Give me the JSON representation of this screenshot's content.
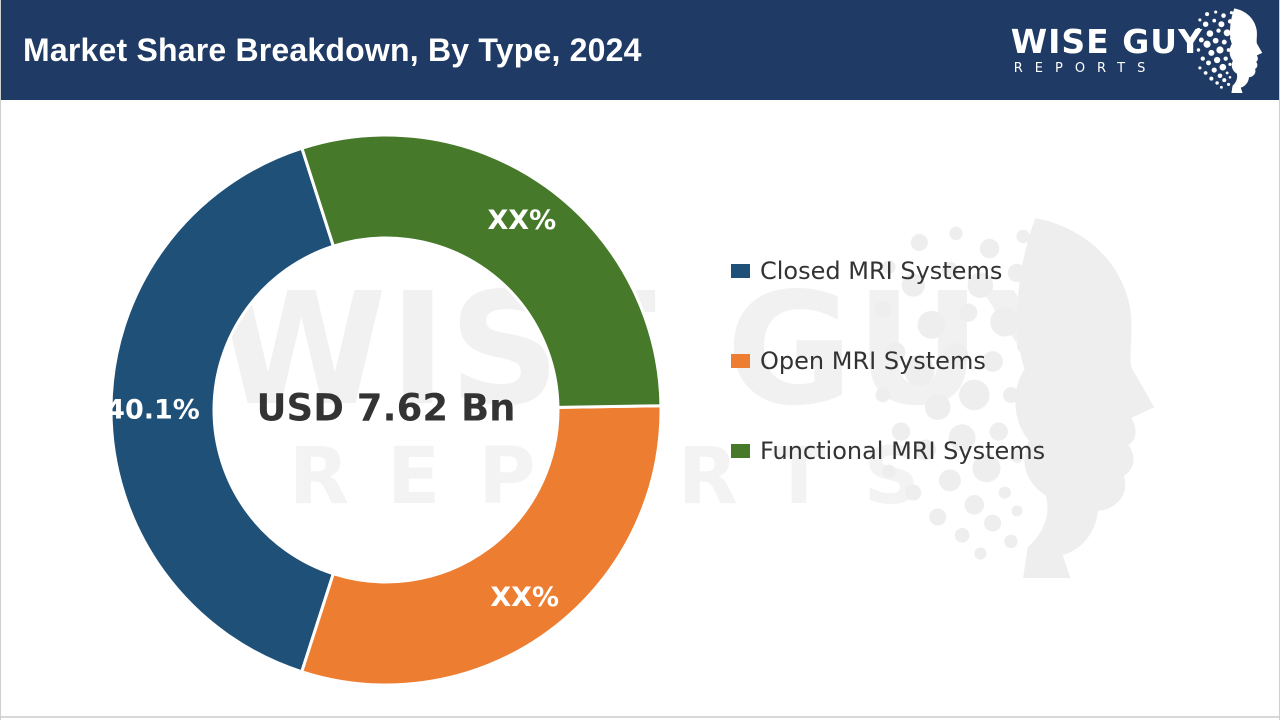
{
  "header": {
    "title": "Market Share Breakdown, By Type, 2024",
    "bg_color": "#1f3a64",
    "logo": {
      "line1": "WISE GUY",
      "line2": "REPORTS"
    }
  },
  "watermark": {
    "line1": "WISE GUY",
    "line2": "REPORTS"
  },
  "chart_data": {
    "type": "pie",
    "subtype": "donut",
    "title": "Market Share Breakdown, By Type, 2024",
    "center_label": "USD 7.62 Bn",
    "start_angle_deg": 107.8,
    "direction": "counterclockwise",
    "legend_position": "right",
    "gap_color": "#ffffff",
    "segments": [
      {
        "name": "Closed MRI Systems",
        "value_pct": 40.1,
        "display_label": "40.1%",
        "color": "#1f5078"
      },
      {
        "name": "Open MRI Systems",
        "value_pct": 30.2,
        "display_label": "XX%",
        "color": "#ed7d31"
      },
      {
        "name": "Functional MRI Systems",
        "value_pct": 29.7,
        "display_label": "XX%",
        "color": "#47792a"
      }
    ]
  }
}
